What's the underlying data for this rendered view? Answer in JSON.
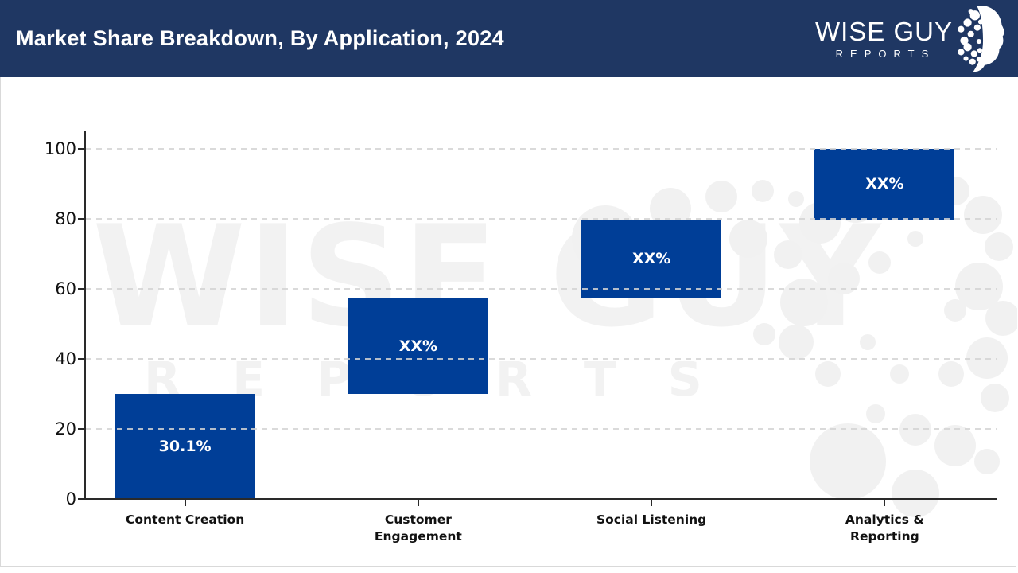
{
  "header": {
    "title": "Market Share Breakdown, By Application, 2024",
    "logo": {
      "main": "WISE GUY",
      "sub": "REPORTS"
    }
  },
  "watermark": {
    "line1": "WISE GUY",
    "line2": "R E P O R T S"
  },
  "colors": {
    "header_bg": "#1f3763",
    "bar": "#003e97",
    "axis": "#2a2a2a",
    "grid": "#d3d3d3",
    "tick_label": "#111111",
    "bar_label": "#ffffff",
    "watermark": "#f2f2f2",
    "card_border": "#d9d9d9"
  },
  "chart_data": {
    "type": "bar",
    "subtype": "waterfall",
    "title": "Market Share Breakdown, By Application, 2024",
    "categories": [
      "Content Creation",
      "Customer\nEngagement",
      "Social Listening",
      "Analytics &\nReporting"
    ],
    "segments": [
      {
        "category": "Content Creation",
        "start": 0,
        "end": 30.1,
        "label": "30.1%"
      },
      {
        "category": "Customer Engagement",
        "start": 30.1,
        "end": 57.3,
        "label": "XX%"
      },
      {
        "category": "Social Listening",
        "start": 57.3,
        "end": 79.8,
        "label": "XX%"
      },
      {
        "category": "Analytics & Reporting",
        "start": 79.8,
        "end": 100,
        "label": "XX%"
      }
    ],
    "ylim": [
      0,
      100
    ],
    "yticks": [
      0,
      20,
      40,
      60,
      80,
      100
    ],
    "xlabel": "",
    "ylabel": "",
    "grid": "horizontal-dashed",
    "legend": "none",
    "bar_color": "#003e97"
  }
}
